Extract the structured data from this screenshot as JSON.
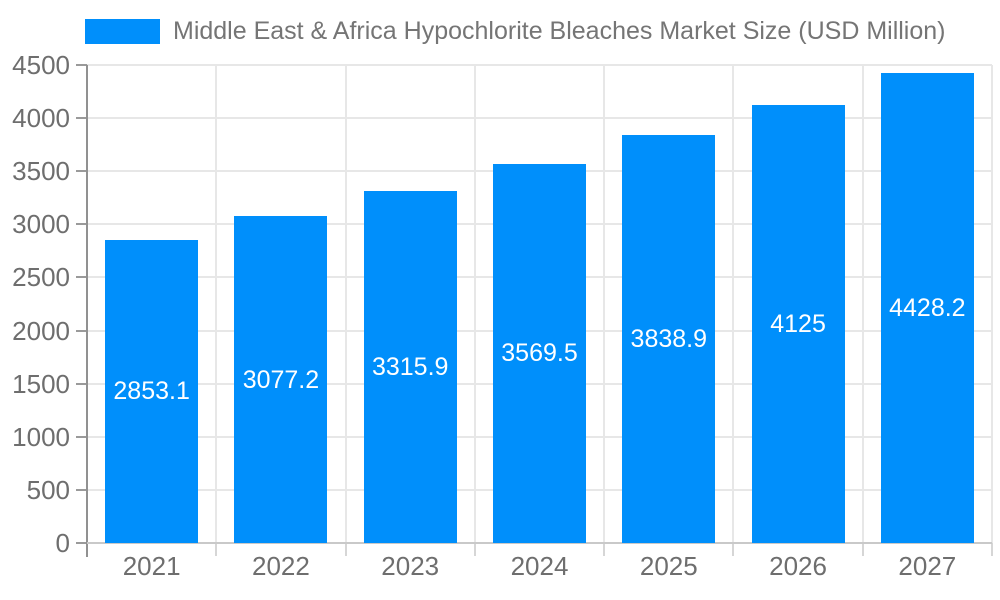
{
  "chart_data": {
    "type": "bar",
    "title": "Middle East & Africa Hypochlorite Bleaches Market Size (USD Million)",
    "xlabel": "",
    "ylabel": "",
    "categories": [
      "2021",
      "2022",
      "2023",
      "2024",
      "2025",
      "2026",
      "2027"
    ],
    "values": [
      2853.1,
      3077.2,
      3315.9,
      3569.5,
      3838.9,
      4125,
      4428.2
    ],
    "series": [
      {
        "name": "Middle East & Africa Hypochlorite Bleaches Market Size (USD Million)",
        "values": [
          2853.1,
          3077.2,
          3315.9,
          3569.5,
          3838.9,
          4125,
          4428.2
        ]
      }
    ],
    "ylim": [
      0,
      4500
    ],
    "ytick_step": 500,
    "ytick_labels": [
      "0",
      "500",
      "1000",
      "1500",
      "2000",
      "2500",
      "3000",
      "3500",
      "4000",
      "4500"
    ],
    "grid": true,
    "legend_position": "top",
    "data_labels": "inside-center"
  },
  "colors": {
    "bar": "#008FFB",
    "bar_label": "#ffffff",
    "title_text": "#757575",
    "axis_text": "#6e6e6e",
    "y_axis_line": "#919191",
    "y_tick": "#9a9a9a",
    "gridline": "#e7e7e7",
    "x_axis_line": "#c9c9c9",
    "x_boundary_tick": "#d6d6d6",
    "background": "#ffffff"
  }
}
